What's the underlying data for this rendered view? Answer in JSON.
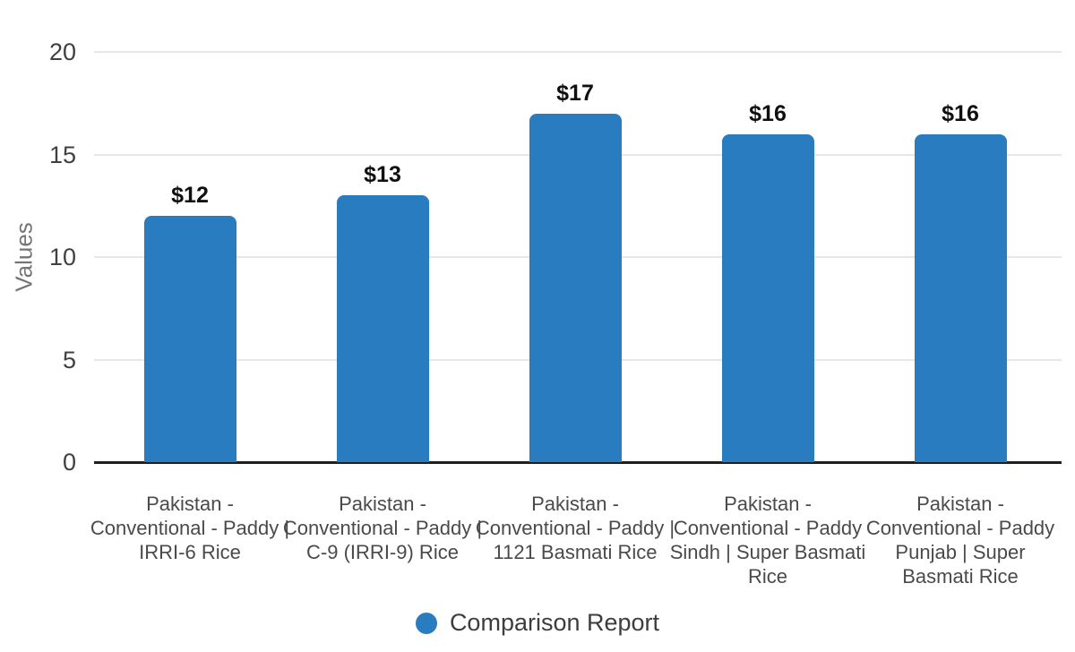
{
  "chart_data": {
    "type": "bar",
    "title": "",
    "xlabel": "",
    "ylabel": "Values",
    "categories": [
      "Pakistan - Conventional - Paddy | IRRI-6 Rice",
      "Pakistan - Conventional - Paddy | C-9 (IRRI-9) Rice",
      "Pakistan - Conventional - Paddy | 1121 Basmati Rice",
      "Pakistan - Conventional - Paddy Sindh | Super Basmati Rice",
      "Pakistan - Conventional - Paddy Punjab | Super Basmati Rice"
    ],
    "category_lines": [
      [
        "Pakistan -",
        "Conventional - Paddy |",
        "IRRI-6 Rice"
      ],
      [
        "Pakistan -",
        "Conventional - Paddy |",
        "C-9 (IRRI-9) Rice"
      ],
      [
        "Pakistan -",
        "Conventional - Paddy |",
        "1121 Basmati Rice"
      ],
      [
        "Pakistan -",
        "Conventional - Paddy",
        "Sindh | Super Basmati",
        "Rice"
      ],
      [
        "Pakistan -",
        "Conventional - Paddy",
        "Punjab | Super",
        "Basmati Rice"
      ]
    ],
    "series": [
      {
        "name": "Comparison Report",
        "values": [
          12,
          13,
          17,
          16,
          16
        ],
        "value_labels": [
          "$12",
          "$13",
          "$17",
          "$16",
          "$16"
        ]
      }
    ],
    "yticks": [
      0,
      5,
      10,
      15,
      20
    ],
    "ylim": [
      0,
      20
    ],
    "grid": "horizontal-light",
    "legend_position": "bottom-center"
  },
  "legend": {
    "label": "Comparison Report"
  },
  "colors": {
    "bar": "#2a7cc1",
    "gridline": "#e7e7e7",
    "axis_line": "#1f1f1f",
    "tick_label": "#404040",
    "category_label": "#4a4a4a",
    "value_label": "#101010",
    "y_axis_title": "#757575",
    "background": "#ffffff"
  }
}
